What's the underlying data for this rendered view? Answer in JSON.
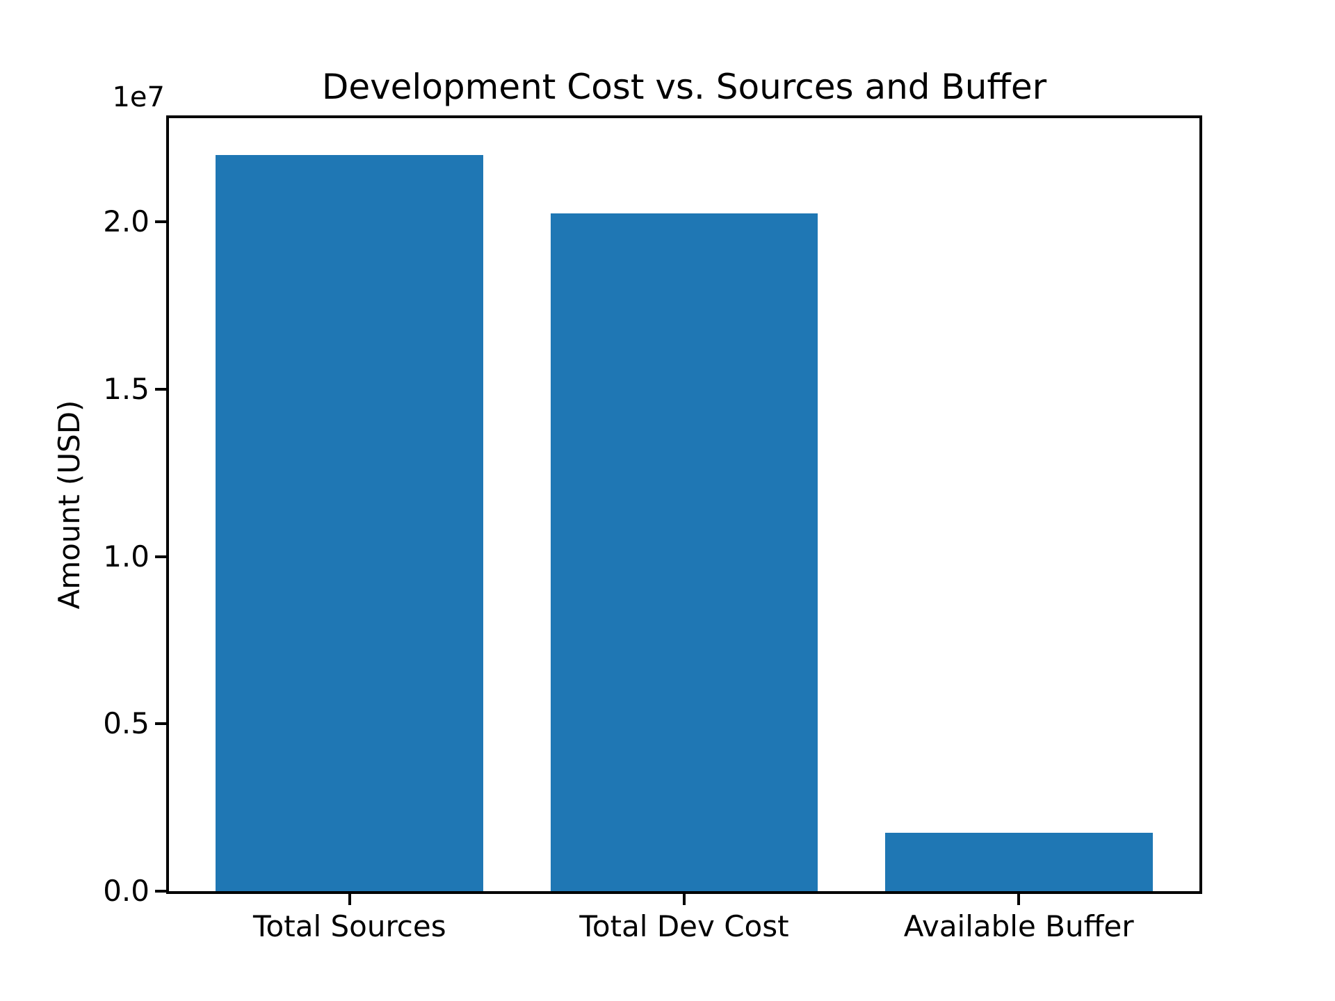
{
  "chart_data": {
    "type": "bar",
    "title": "Development Cost vs. Sources and Buffer",
    "xlabel": "",
    "ylabel": "Amount (USD)",
    "y_offset_text": "1e7",
    "categories": [
      "Total Sources",
      "Total Dev Cost",
      "Available Buffer"
    ],
    "values": [
      22000000,
      20250000,
      1750000
    ],
    "ytick_values": [
      0,
      5000000,
      10000000,
      15000000,
      20000000
    ],
    "ytick_labels": [
      "0.0",
      "0.5",
      "1.0",
      "1.5",
      "2.0"
    ],
    "ylim": [
      0,
      23100000
    ],
    "xlim": [
      -0.54,
      2.54
    ],
    "bar_width": 0.8,
    "bar_color": "#1f77b4",
    "grid": false,
    "legend": null
  }
}
